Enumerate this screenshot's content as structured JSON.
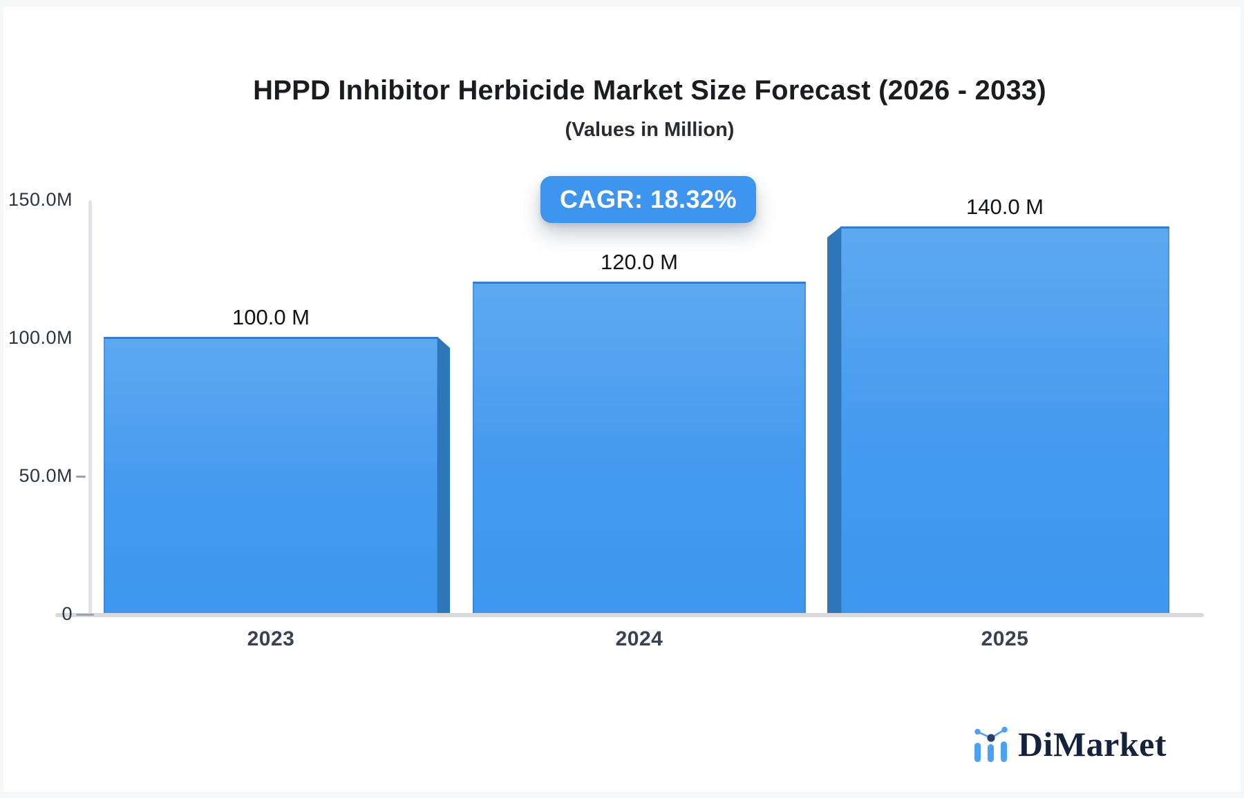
{
  "page": {
    "title": "HPPD Inhibitor Herbicide Market Size Forecast (2026 - 2033)",
    "subtitle": "(Values in Million)",
    "cagr_badge": "CAGR: 18.32%"
  },
  "chart_data": {
    "type": "bar",
    "title": "HPPD Inhibitor Herbicide Market Size Forecast (2026 - 2033)",
    "subtitle": "(Values in Million)",
    "unit": "Million",
    "cagr_percent": 18.32,
    "categories": [
      "2023",
      "2024",
      "2025"
    ],
    "values": [
      100.0,
      120.0,
      140.0
    ],
    "bar_labels": [
      "100.0 M",
      "120.0 M",
      "140.0 M"
    ],
    "yaxis": {
      "tick_labels": [
        "150.0M",
        "100.0M",
        "50.0M",
        "0"
      ],
      "tick_values": [
        150,
        100,
        50,
        0
      ],
      "ylim": [
        0,
        150
      ],
      "grid": false
    },
    "legend_position": "none",
    "bar_color_top": "#5da9f1",
    "bar_color_bottom": "#3d97ee",
    "bar_side_color": "#2d76b8"
  },
  "branding": {
    "logo_text": "DiMarket",
    "logo_icon": "mini-bar-line-chart-icon",
    "logo_text_color": "#14223c",
    "logo_accent_color": "#4aa1f5"
  },
  "colors": {
    "badge_bg": "#3e95ef",
    "badge_text": "#ffffff",
    "axis_line": "#e2e3e7",
    "baseline": "#d8dade",
    "title_text": "#1b1c20"
  }
}
